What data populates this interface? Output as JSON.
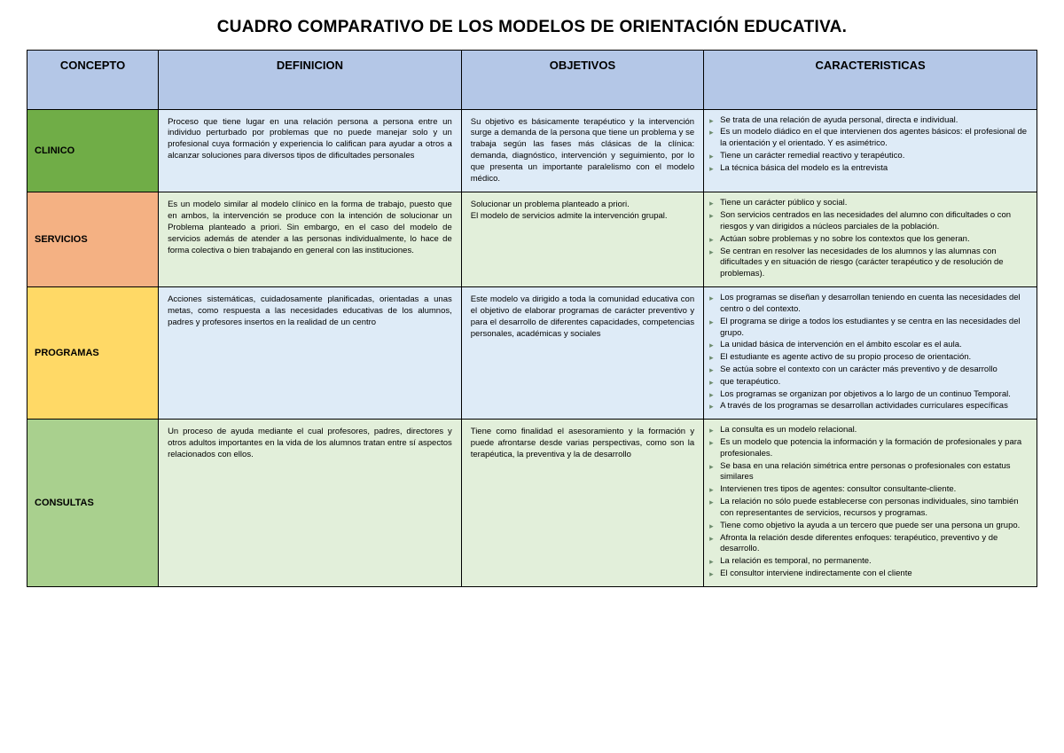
{
  "title": "CUADRO COMPARATIVO DE LOS MODELOS DE  ORIENTACIÓN EDUCATIVA.",
  "table": {
    "col_widths": [
      "13%",
      "30%",
      "24%",
      "33%"
    ],
    "header_bg": "#b4c7e7",
    "body_bg_alt1": "#deebf7",
    "body_bg_alt2": "#e2efda",
    "columns": [
      "CONCEPTO",
      "DEFINICION",
      "OBJETIVOS",
      "CARACTERISTICAS"
    ],
    "rows": [
      {
        "concepto": "CLINICO",
        "label_bg": "#70ad47",
        "body_bg": "#deebf7",
        "definicion": "Proceso que tiene lugar en una relación persona a persona entre un individuo perturbado por problemas que no puede manejar solo y un profesional cuya formación y experiencia lo califican para ayudar a otros a alcanzar soluciones para diversos tipos de dificultades personales",
        "objetivos": "Su objetivo es básicamente terapéutico y la intervención surge a demanda de la persona que tiene un problema y se trabaja según las fases más clásicas de la clínica: demanda, diagnóstico, intervención y seguimiento, por lo que presenta un importante paralelismo con el modelo médico.",
        "caracteristicas": [
          "Se trata de una relación de ayuda personal, directa e individual.",
          "Es un modelo diádico en el que intervienen dos agentes básicos: el profesional de la orientación y el orientado. Y es asimétrico.",
          "Tiene un carácter remedial reactivo y terapéutico.",
          "La técnica básica del modelo es la entrevista"
        ]
      },
      {
        "concepto": "SERVICIOS",
        "label_bg": "#f4b183",
        "body_bg": "#e2efda",
        "definicion": "Es un modelo similar al modelo clínico en la forma de trabajo, puesto que en ambos, la intervención se produce con la intención de solucionar un Problema planteado a priori. Sin embargo, en el caso del modelo de servicios además de atender a las personas individualmente, lo hace de forma colectiva o bien trabajando en general con las instituciones.",
        "objetivos": "Solucionar un problema planteado a priori.\nEl modelo de servicios admite la intervención grupal.",
        "caracteristicas": [
          "Tiene un carácter público y social.",
          "Son servicios centrados en las necesidades del alumno con dificultades o con riesgos y van dirigidos a núcleos parciales de la población.",
          "Actúan sobre problemas y no sobre los contextos que los generan.",
          "Se centran en resolver las necesidades de los alumnos y las alumnas con dificultades y en situación de riesgo (carácter terapéutico y de resolución de problemas)."
        ]
      },
      {
        "concepto": "PROGRAMAS",
        "label_bg": "#ffd966",
        "body_bg": "#deebf7",
        "definicion": "Acciones sistemáticas, cuidadosamente planificadas, orientadas a unas metas, como respuesta a las necesidades educativas de los alumnos, padres y profesores insertos en la realidad de un centro",
        "objetivos": "Este modelo va dirigido a toda la comunidad educativa con el objetivo de elaborar programas de carácter preventivo y para el desarrollo de diferentes capacidades, competencias personales, académicas y sociales",
        "caracteristicas": [
          "Los programas se diseñan y desarrollan teniendo en cuenta las necesidades del centro o del contexto.",
          "El programa se dirige a todos los estudiantes y se centra en las necesidades del grupo.",
          "La unidad básica de intervención en el ámbito escolar es el aula.",
          "El estudiante es agente activo de su propio proceso de orientación.",
          "Se actúa sobre el contexto con un carácter más preventivo y de desarrollo",
          "que terapéutico.",
          "Los programas se organizan por objetivos a lo largo de un continuo Temporal.",
          "A través de los programas se desarrollan actividades curriculares específicas"
        ]
      },
      {
        "concepto": "CONSULTAS",
        "label_bg": "#a9d08e",
        "body_bg": "#e2efda",
        "definicion": "Un proceso de ayuda mediante el cual profesores, padres, directores y otros adultos importantes en la vida de los alumnos tratan entre sí aspectos relacionados con ellos.",
        "objetivos": "Tiene como finalidad el asesoramiento y la formación y puede afrontarse desde varias perspectivas, como son la terapéutica, la preventiva y la de desarrollo",
        "caracteristicas": [
          "La consulta es un modelo relacional.",
          "Es un modelo que potencia la información y la formación de profesionales y para profesionales.",
          "Se basa en una relación simétrica entre personas o profesionales con estatus similares",
          "Intervienen tres tipos de agentes: consultor consultante-cliente.",
          "La relación no sólo puede establecerse con personas individuales, sino también con representantes de servicios, recursos y programas.",
          "Tiene como objetivo la ayuda a un tercero que puede ser una persona un grupo.",
          "Afronta la relación desde diferentes enfoques: terapéutico, preventivo y de desarrollo.",
          "La relación es temporal, no permanente.",
          "El consultor interviene indirectamente con el cliente"
        ]
      }
    ]
  }
}
